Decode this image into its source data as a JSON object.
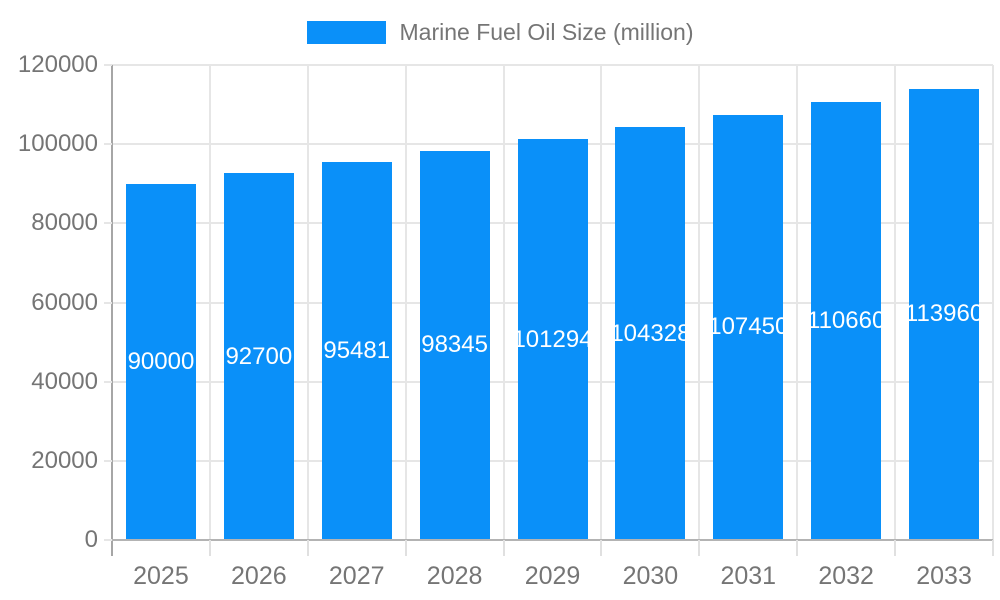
{
  "chart": {
    "legend": {
      "label": "Marine Fuel Oil Size (million)"
    },
    "colors": {
      "bar": "#0a90f9",
      "gridline": "#e6e6e6",
      "y_axis_line": "#a6a6a6",
      "baseline": "#b3b3b3",
      "tick_text": "#757575",
      "bar_label_text": "#ffffff",
      "background": "#ffffff"
    }
  },
  "chart_data": {
    "type": "bar",
    "title": "Marine Fuel Oil Size (million)",
    "series_name": "Marine Fuel Oil Size (million)",
    "categories": [
      "2025",
      "2026",
      "2027",
      "2028",
      "2029",
      "2030",
      "2031",
      "2032",
      "2033"
    ],
    "values": [
      90000,
      92700,
      95481,
      98345,
      101294,
      104328,
      107450,
      110660,
      113960
    ],
    "bar_labels": [
      "90000",
      "92700",
      "95481",
      "98345",
      "101294",
      "104328",
      "107450",
      "110660",
      "113960"
    ],
    "xlabel": "",
    "ylabel": "",
    "ylim": [
      0,
      120000
    ],
    "y_ticks": [
      0,
      20000,
      40000,
      60000,
      80000,
      100000,
      120000
    ],
    "y_tick_labels": [
      "0",
      "20000",
      "40000",
      "60000",
      "80000",
      "100000",
      "120000"
    ],
    "grid": true,
    "legend_position": "top"
  }
}
